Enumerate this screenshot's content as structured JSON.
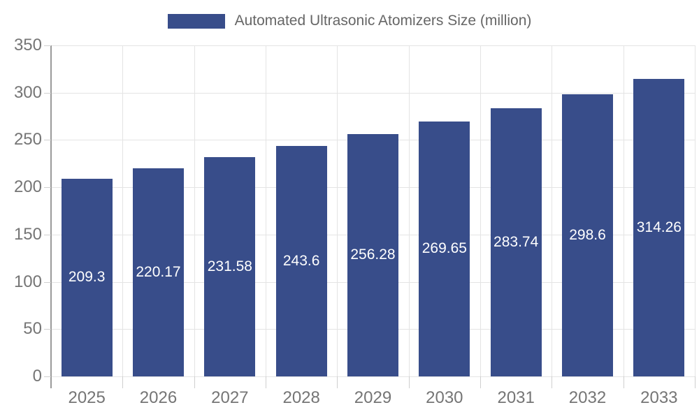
{
  "legend": {
    "label": "Automated Ultrasonic Atomizers Size (million)"
  },
  "colors": {
    "bar": "#384D8A",
    "grid": "#E4E4E4",
    "axis_line": "#9A9A9A",
    "tick": "#CFCFCF",
    "axis_label": "#757575",
    "legend_text": "#666666",
    "value_label": "#FFFFFF",
    "background": "#FFFFFF"
  },
  "chart_data": {
    "type": "bar",
    "title": "",
    "legend": "Automated Ultrasonic Atomizers Size (million)",
    "categories": [
      "2025",
      "2026",
      "2027",
      "2028",
      "2029",
      "2030",
      "2031",
      "2032",
      "2033"
    ],
    "values": [
      209.3,
      220.17,
      231.58,
      243.6,
      256.28,
      269.65,
      283.74,
      298.6,
      314.26
    ],
    "value_labels": [
      "209.3",
      "220.17",
      "231.58",
      "243.6",
      "256.28",
      "269.65",
      "283.74",
      "298.6",
      "314.26"
    ],
    "xlabel": "",
    "ylabel": "",
    "ylim": [
      0,
      350
    ],
    "yticks": [
      0,
      50,
      100,
      150,
      200,
      250,
      300,
      350
    ],
    "grid": true,
    "legend_position": "top",
    "bar_label_position": "center"
  }
}
